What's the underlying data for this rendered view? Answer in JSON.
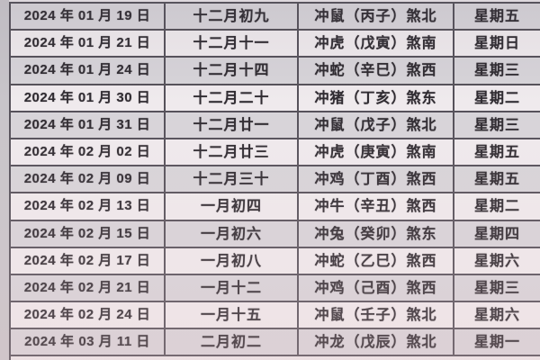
{
  "table": {
    "description": "Chinese almanac auspicious-dates table",
    "rows": [
      {
        "gregorian": "2024 年 01 月 19 日",
        "lunar": "十二月初九",
        "clash": "冲鼠（丙子）煞北",
        "weekday": "星期五"
      },
      {
        "gregorian": "2024 年 01 月 21 日",
        "lunar": "十二月十一",
        "clash": "冲虎（戊寅）煞南",
        "weekday": "星期日"
      },
      {
        "gregorian": "2024 年 01 月 24 日",
        "lunar": "十二月十四",
        "clash": "冲蛇（辛巳）煞西",
        "weekday": "星期三"
      },
      {
        "gregorian": "2024 年 01 月 30 日",
        "lunar": "十二月二十",
        "clash": "冲猪（丁亥）煞东",
        "weekday": "星期二"
      },
      {
        "gregorian": "2024 年 01 月 31 日",
        "lunar": "十二月廿一",
        "clash": "冲鼠（戊子）煞北",
        "weekday": "星期三"
      },
      {
        "gregorian": "2024 年 02 月 02 日",
        "lunar": "十二月廿三",
        "clash": "冲虎（庚寅）煞南",
        "weekday": "星期五"
      },
      {
        "gregorian": "2024 年 02 月 09 日",
        "lunar": "十二月三十",
        "clash": "冲鸡（丁酉）煞西",
        "weekday": "星期五"
      },
      {
        "gregorian": "2024 年 02 月 13 日",
        "lunar": "一月初四",
        "clash": "冲牛（辛丑）煞西",
        "weekday": "星期二"
      },
      {
        "gregorian": "2024 年 02 月 15 日",
        "lunar": "一月初六",
        "clash": "冲兔（癸卯）煞东",
        "weekday": "星期四"
      },
      {
        "gregorian": "2024 年 02 月 17 日",
        "lunar": "一月初八",
        "clash": "冲蛇（乙巳）煞西",
        "weekday": "星期六"
      },
      {
        "gregorian": "2024 年 02 月 21 日",
        "lunar": "一月十二",
        "clash": "冲鸡（己酉）煞西",
        "weekday": "星期三"
      },
      {
        "gregorian": "2024 年 02 月 24 日",
        "lunar": "一月十五",
        "clash": "冲鼠（壬子）煞北",
        "weekday": "星期六"
      },
      {
        "gregorian": "2024 年 03 月 11 日",
        "lunar": "二月初二",
        "clash": "冲龙（戊辰）煞北",
        "weekday": "星期一"
      }
    ]
  },
  "colors": {
    "border": "#55515a",
    "row_odd_bg": "#d7d4d9",
    "row_even_bg": "#efeaed",
    "text": "#2f2b31",
    "page_margin_bg": "#c8c5ca"
  }
}
